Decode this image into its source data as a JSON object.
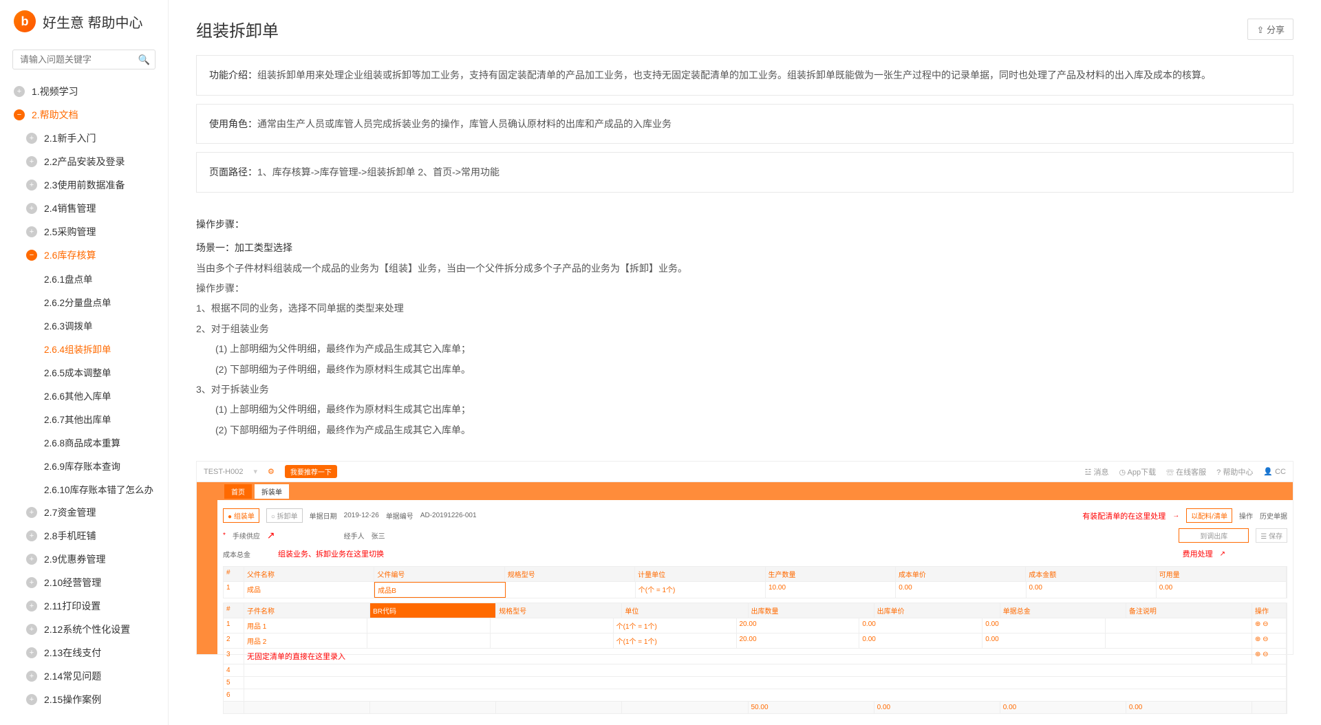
{
  "header": {
    "logo_text": "好生意 帮助中心",
    "logo_letter": "b",
    "search_placeholder": "请输入问题关键字"
  },
  "nav": {
    "items": [
      {
        "label": "1.视频学习",
        "level": 1,
        "expanded": false
      },
      {
        "label": "2.帮助文档",
        "level": 1,
        "expanded": true
      },
      {
        "label": "2.1新手入门",
        "level": 2,
        "expanded": false
      },
      {
        "label": "2.2产品安装及登录",
        "level": 2,
        "expanded": false
      },
      {
        "label": "2.3使用前数据准备",
        "level": 2,
        "expanded": false
      },
      {
        "label": "2.4销售管理",
        "level": 2,
        "expanded": false
      },
      {
        "label": "2.5采购管理",
        "level": 2,
        "expanded": false
      },
      {
        "label": "2.6库存核算",
        "level": 2,
        "expanded": true
      },
      {
        "label": "2.6.1盘点单",
        "level": 3
      },
      {
        "label": "2.6.2分量盘点单",
        "level": 3
      },
      {
        "label": "2.6.3调拨单",
        "level": 3
      },
      {
        "label": "2.6.4组装拆卸单",
        "level": 3,
        "selected": true
      },
      {
        "label": "2.6.5成本调整单",
        "level": 3
      },
      {
        "label": "2.6.6其他入库单",
        "level": 3
      },
      {
        "label": "2.6.7其他出库单",
        "level": 3
      },
      {
        "label": "2.6.8商品成本重算",
        "level": 3
      },
      {
        "label": "2.6.9库存账本查询",
        "level": 3
      },
      {
        "label": "2.6.10库存账本错了怎么办",
        "level": 3
      },
      {
        "label": "2.7资金管理",
        "level": 2,
        "expanded": false
      },
      {
        "label": "2.8手机旺铺",
        "level": 2,
        "expanded": false
      },
      {
        "label": "2.9优惠券管理",
        "level": 2,
        "expanded": false
      },
      {
        "label": "2.10经营管理",
        "level": 2,
        "expanded": false
      },
      {
        "label": "2.11打印设置",
        "level": 2,
        "expanded": false
      },
      {
        "label": "2.12系统个性化设置",
        "level": 2,
        "expanded": false
      },
      {
        "label": "2.13在线支付",
        "level": 2,
        "expanded": false
      },
      {
        "label": "2.14常见问题",
        "level": 2,
        "expanded": false
      },
      {
        "label": "2.15操作案例",
        "level": 2,
        "expanded": false
      }
    ]
  },
  "page": {
    "title": "组装拆卸单",
    "share_label": "分享",
    "intro": {
      "label": "功能介绍：",
      "text": "组装拆卸单用来处理企业组装或拆卸等加工业务，支持有固定装配清单的产品加工业务，也支持无固定装配清单的加工业务。组装拆卸单既能做为一张生产过程中的记录单据，同时也处理了产品及材料的出入库及成本的核算。"
    },
    "role": {
      "label": "使用角色：",
      "text": "通常由生产人员或库管人员完成拆装业务的操作，库管人员确认原材料的出库和产成品的入库业务"
    },
    "path": {
      "label": "页面路径：",
      "text": "1、库存核算->库存管理->组装拆卸单 2、首页->常用功能"
    },
    "steps_heading": "操作步骤：",
    "scene_heading": "场景一：加工类型选择",
    "scene_desc": "当由多个子件材料组装成一个成品的业务为【组装】业务，当由一个父件拆分成多个子产品的业务为【拆卸】业务。",
    "steps_sub": "操作步骤：",
    "step1": "1、根据不同的业务，选择不同单据的类型来处理",
    "step2": "2、对于组装业务",
    "step2a": "(1) 上部明细为父件明细，最终作为产成品生成其它入库单；",
    "step2b": "(2) 下部明细为子件明细，最终作为原材料生成其它出库单。",
    "step3": "3、对于拆装业务",
    "step3a": "(1) 上部明细为父件明细，最终作为原材料生成其它出库单；",
    "step3b": "(2) 下部明细为子件明细，最终作为产成品生成其它入库单。"
  },
  "screenshot": {
    "top_account": "TEST-H002",
    "top_btn": "我要推荐一下",
    "top_menu1": "消息",
    "top_menu2": "App下载",
    "top_menu3": "在线客服",
    "top_menu4": "帮助中心",
    "top_user": "CC",
    "tab1": "首页",
    "tab2": "拆装单",
    "radio1": "组装单",
    "radio2": "拆卸单",
    "date_label": "单据日期",
    "date_value": "2019-12-26",
    "doc_label": "单据编号",
    "doc_value": "AD-20191226-001",
    "anno1": "有装配清单的在这里处理",
    "btn_recipe": "以配料/清单",
    "btn_op": "操作",
    "btn_history": "历史单据",
    "hand_label": "手续供应",
    "person_label": "经手人",
    "person_value": "张三",
    "warehouse_label": "到调出库",
    "anno2": "组装业务、拆卸业务在这里切换",
    "anno3": "费用处理",
    "cost_label": "成本总金",
    "th_parent_name": "父件名称",
    "th_parent_no": "父件编号",
    "th_spec": "规格型号",
    "th_unit": "计量单位",
    "th_prod_qty": "生产数量",
    "th_cost_unit": "成本单价",
    "th_cost_amt": "成本金额",
    "th_avail": "可用量",
    "row_p1_name": "成品",
    "row_p1_no": "成品B",
    "row_p1_unit": "个(个 = 1个)",
    "row_p1_qty": "10.00",
    "row_p1_price": "0.00",
    "row_p1_amt": "0.00",
    "row_p1_avail": "0.00",
    "th_child_name": "子件名称",
    "th_child_no": "BR代码",
    "th_child_spec": "规格型号",
    "th_child_unit": "单位",
    "th_child_qty": "出库数量",
    "th_child_price": "出库单价",
    "th_child_amt": "单据总金",
    "th_child_remark": "备注说明",
    "th_op": "操作",
    "row_c1": "用品 1",
    "row_c2": "用品 2",
    "row_c_unit": "个(1个 = 1个)",
    "row_c_qty": "20.00",
    "row_c_val": "0.00",
    "anno4": "无固定清单的直接在这里录入",
    "sum1": "50.00",
    "sum2": "0.00"
  },
  "colors": {
    "primary": "#ff6a00",
    "text": "#333333",
    "muted": "#999999",
    "border": "#e8e8e8",
    "annotation": "#ff0000"
  }
}
